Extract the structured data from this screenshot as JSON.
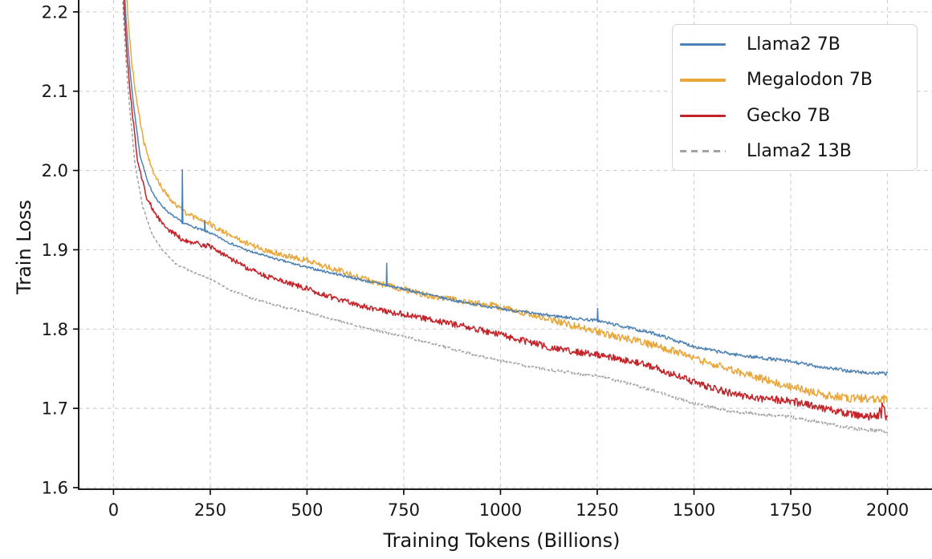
{
  "chart_data": {
    "type": "line",
    "title": "",
    "xlabel": "Training Tokens (Billions)",
    "ylabel": "Train Loss",
    "xlim": [
      -90,
      2115
    ],
    "ylim": [
      1.598,
      2.215
    ],
    "x_ticks": [
      0,
      250,
      500,
      750,
      1000,
      1250,
      1500,
      1750,
      2000
    ],
    "y_ticks": [
      1.6,
      1.7,
      1.8,
      1.9,
      2.0,
      2.1,
      2.2
    ],
    "grid": "dashed",
    "grid_color": "#cfcfcf",
    "spine_color": "#000000",
    "legend_position": "upper right",
    "series": [
      {
        "name": "Llama2 7B",
        "color": "#4e82b4",
        "style": "solid",
        "noise": 0.0018,
        "spikes": [
          [
            178,
            2.001
          ],
          [
            236,
            1.937
          ],
          [
            706,
            1.883
          ],
          [
            1251,
            1.826
          ]
        ],
        "points": [
          [
            24,
            2.28
          ],
          [
            31,
            2.2
          ],
          [
            40,
            2.14
          ],
          [
            50,
            2.09
          ],
          [
            68,
            2.02
          ],
          [
            90,
            1.982
          ],
          [
            115,
            1.96
          ],
          [
            145,
            1.945
          ],
          [
            180,
            1.933
          ],
          [
            215,
            1.927
          ],
          [
            250,
            1.921
          ],
          [
            300,
            1.909
          ],
          [
            350,
            1.899
          ],
          [
            400,
            1.892
          ],
          [
            450,
            1.885
          ],
          [
            500,
            1.878
          ],
          [
            550,
            1.872
          ],
          [
            600,
            1.866
          ],
          [
            650,
            1.86
          ],
          [
            700,
            1.855
          ],
          [
            750,
            1.85
          ],
          [
            800,
            1.845
          ],
          [
            850,
            1.84
          ],
          [
            900,
            1.835
          ],
          [
            950,
            1.831
          ],
          [
            1000,
            1.826
          ],
          [
            1050,
            1.822
          ],
          [
            1100,
            1.818
          ],
          [
            1150,
            1.815
          ],
          [
            1200,
            1.812
          ],
          [
            1250,
            1.81
          ],
          [
            1300,
            1.805
          ],
          [
            1350,
            1.8
          ],
          [
            1400,
            1.795
          ],
          [
            1450,
            1.787
          ],
          [
            1500,
            1.779
          ],
          [
            1550,
            1.773
          ],
          [
            1600,
            1.768
          ],
          [
            1650,
            1.764
          ],
          [
            1700,
            1.761
          ],
          [
            1750,
            1.758
          ],
          [
            1800,
            1.754
          ],
          [
            1850,
            1.751
          ],
          [
            1900,
            1.748
          ],
          [
            1950,
            1.746
          ],
          [
            2000,
            1.745
          ]
        ]
      },
      {
        "name": "Megalodon 7B",
        "color": "#e9a63b",
        "style": "solid",
        "noise": 0.0042,
        "spikes": [],
        "points": [
          [
            27,
            2.28
          ],
          [
            36,
            2.2
          ],
          [
            46,
            2.14
          ],
          [
            56,
            2.1
          ],
          [
            78,
            2.035
          ],
          [
            100,
            2.0
          ],
          [
            125,
            1.978
          ],
          [
            155,
            1.96
          ],
          [
            190,
            1.947
          ],
          [
            220,
            1.94
          ],
          [
            250,
            1.934
          ],
          [
            300,
            1.92
          ],
          [
            350,
            1.908
          ],
          [
            400,
            1.898
          ],
          [
            450,
            1.891
          ],
          [
            500,
            1.885
          ],
          [
            550,
            1.877
          ],
          [
            600,
            1.87
          ],
          [
            650,
            1.863
          ],
          [
            700,
            1.857
          ],
          [
            750,
            1.852
          ],
          [
            800,
            1.846
          ],
          [
            850,
            1.841
          ],
          [
            900,
            1.836
          ],
          [
            950,
            1.831
          ],
          [
            1000,
            1.826
          ],
          [
            1050,
            1.82
          ],
          [
            1100,
            1.814
          ],
          [
            1150,
            1.809
          ],
          [
            1200,
            1.804
          ],
          [
            1250,
            1.799
          ],
          [
            1300,
            1.793
          ],
          [
            1350,
            1.787
          ],
          [
            1400,
            1.78
          ],
          [
            1450,
            1.771
          ],
          [
            1500,
            1.761
          ],
          [
            1550,
            1.753
          ],
          [
            1600,
            1.746
          ],
          [
            1650,
            1.74
          ],
          [
            1700,
            1.734
          ],
          [
            1750,
            1.729
          ],
          [
            1800,
            1.723
          ],
          [
            1850,
            1.719
          ],
          [
            1900,
            1.715
          ],
          [
            1950,
            1.712
          ],
          [
            2000,
            1.71
          ]
        ]
      },
      {
        "name": "Gecko 7B",
        "color": "#c22328",
        "style": "solid",
        "noise": 0.004,
        "end_flare": true,
        "spikes": [],
        "points": [
          [
            22,
            2.28
          ],
          [
            28,
            2.2
          ],
          [
            36,
            2.14
          ],
          [
            45,
            2.09
          ],
          [
            62,
            2.015
          ],
          [
            85,
            1.968
          ],
          [
            110,
            1.945
          ],
          [
            140,
            1.928
          ],
          [
            175,
            1.915
          ],
          [
            210,
            1.909
          ],
          [
            250,
            1.904
          ],
          [
            300,
            1.888
          ],
          [
            350,
            1.874
          ],
          [
            400,
            1.864
          ],
          [
            450,
            1.857
          ],
          [
            500,
            1.851
          ],
          [
            550,
            1.843
          ],
          [
            600,
            1.837
          ],
          [
            650,
            1.83
          ],
          [
            700,
            1.824
          ],
          [
            750,
            1.819
          ],
          [
            800,
            1.813
          ],
          [
            850,
            1.807
          ],
          [
            900,
            1.802
          ],
          [
            950,
            1.797
          ],
          [
            1000,
            1.792
          ],
          [
            1050,
            1.787
          ],
          [
            1100,
            1.782
          ],
          [
            1150,
            1.777
          ],
          [
            1200,
            1.773
          ],
          [
            1250,
            1.769
          ],
          [
            1300,
            1.763
          ],
          [
            1350,
            1.756
          ],
          [
            1400,
            1.749
          ],
          [
            1450,
            1.74
          ],
          [
            1500,
            1.731
          ],
          [
            1550,
            1.725
          ],
          [
            1600,
            1.72
          ],
          [
            1650,
            1.716
          ],
          [
            1700,
            1.714
          ],
          [
            1750,
            1.711
          ],
          [
            1800,
            1.704
          ],
          [
            1850,
            1.697
          ],
          [
            1900,
            1.691
          ],
          [
            1950,
            1.687
          ],
          [
            1985,
            1.69
          ],
          [
            2000,
            1.688
          ]
        ]
      },
      {
        "name": "Llama2 13B",
        "color": "#a2a2a2",
        "style": "dashed",
        "noise": 0.0016,
        "spikes": [],
        "points": [
          [
            20,
            2.28
          ],
          [
            25,
            2.2
          ],
          [
            32,
            2.14
          ],
          [
            40,
            2.09
          ],
          [
            55,
            2.01
          ],
          [
            75,
            1.955
          ],
          [
            100,
            1.92
          ],
          [
            130,
            1.897
          ],
          [
            160,
            1.882
          ],
          [
            200,
            1.872
          ],
          [
            250,
            1.863
          ],
          [
            300,
            1.849
          ],
          [
            350,
            1.84
          ],
          [
            400,
            1.833
          ],
          [
            450,
            1.827
          ],
          [
            500,
            1.822
          ],
          [
            550,
            1.815
          ],
          [
            600,
            1.808
          ],
          [
            650,
            1.801
          ],
          [
            700,
            1.795
          ],
          [
            750,
            1.79
          ],
          [
            800,
            1.784
          ],
          [
            850,
            1.778
          ],
          [
            900,
            1.772
          ],
          [
            950,
            1.766
          ],
          [
            1000,
            1.761
          ],
          [
            1050,
            1.756
          ],
          [
            1100,
            1.751
          ],
          [
            1150,
            1.747
          ],
          [
            1200,
            1.743
          ],
          [
            1250,
            1.74
          ],
          [
            1300,
            1.734
          ],
          [
            1350,
            1.728
          ],
          [
            1400,
            1.722
          ],
          [
            1450,
            1.714
          ],
          [
            1500,
            1.707
          ],
          [
            1550,
            1.702
          ],
          [
            1600,
            1.697
          ],
          [
            1650,
            1.694
          ],
          [
            1700,
            1.691
          ],
          [
            1750,
            1.688
          ],
          [
            1800,
            1.684
          ],
          [
            1850,
            1.679
          ],
          [
            1900,
            1.675
          ],
          [
            1950,
            1.673
          ],
          [
            2000,
            1.672
          ]
        ]
      }
    ]
  }
}
